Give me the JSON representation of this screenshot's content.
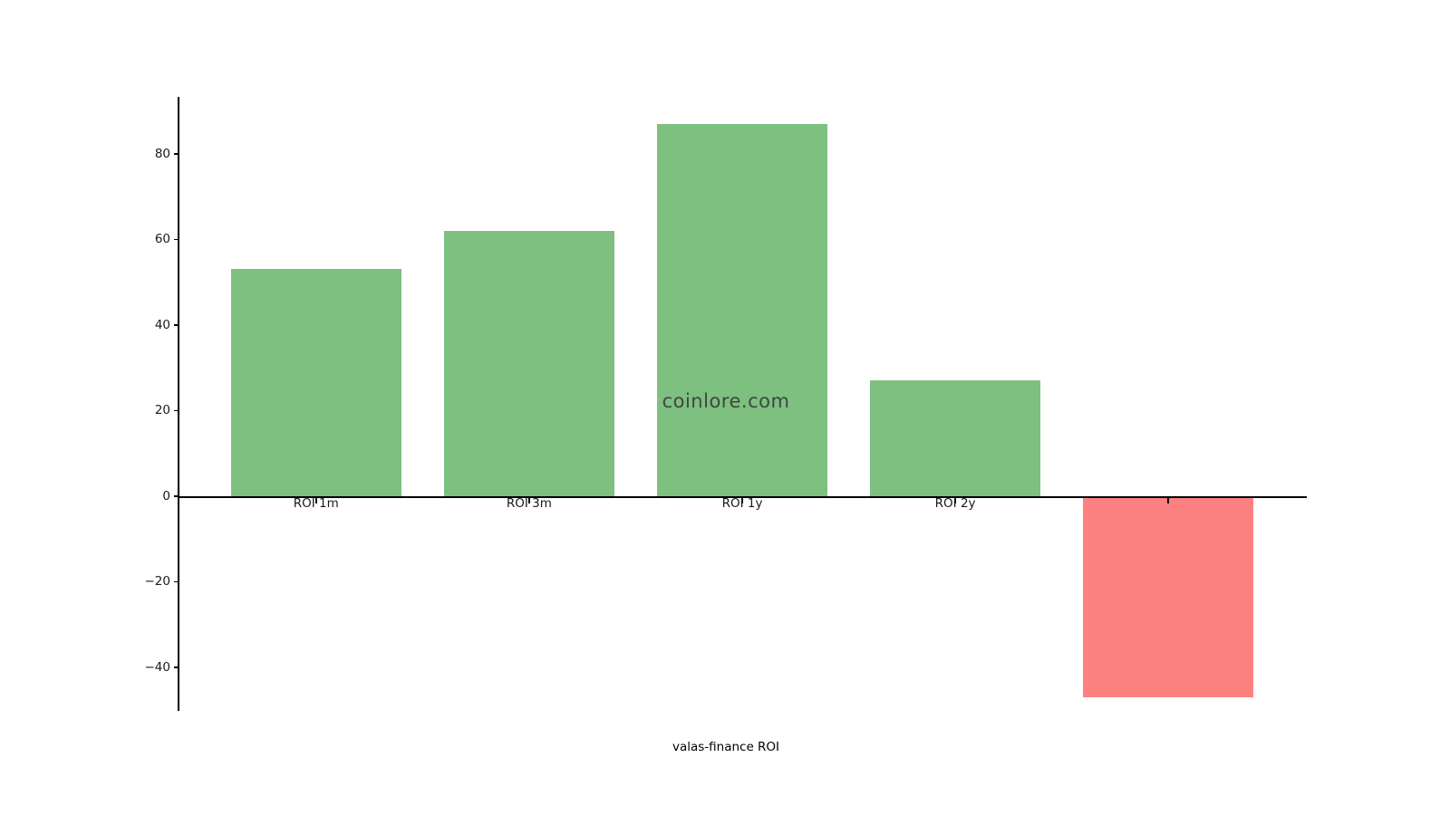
{
  "chart_data": {
    "type": "bar",
    "categories": [
      "ROI 1m",
      "ROI 3m",
      "ROI 1y",
      "ROI 2y",
      ""
    ],
    "values": [
      53,
      62,
      87,
      27,
      -47
    ],
    "title": "valas-finance ROI",
    "xlabel": "",
    "ylabel": "",
    "yticks": [
      80,
      60,
      40,
      20,
      0,
      -20,
      -40
    ],
    "ylim": [
      -50.2,
      93.3
    ],
    "grid": false,
    "legend_position": "none",
    "bar_width_fraction": 0.8,
    "colors": {
      "positive": "#7dc080",
      "negative": "#fd8181",
      "axis": "#000000",
      "tick_label": "#1a1a1a"
    }
  },
  "watermark": {
    "text": "coinlore.com",
    "color": "#3c3c3c"
  }
}
